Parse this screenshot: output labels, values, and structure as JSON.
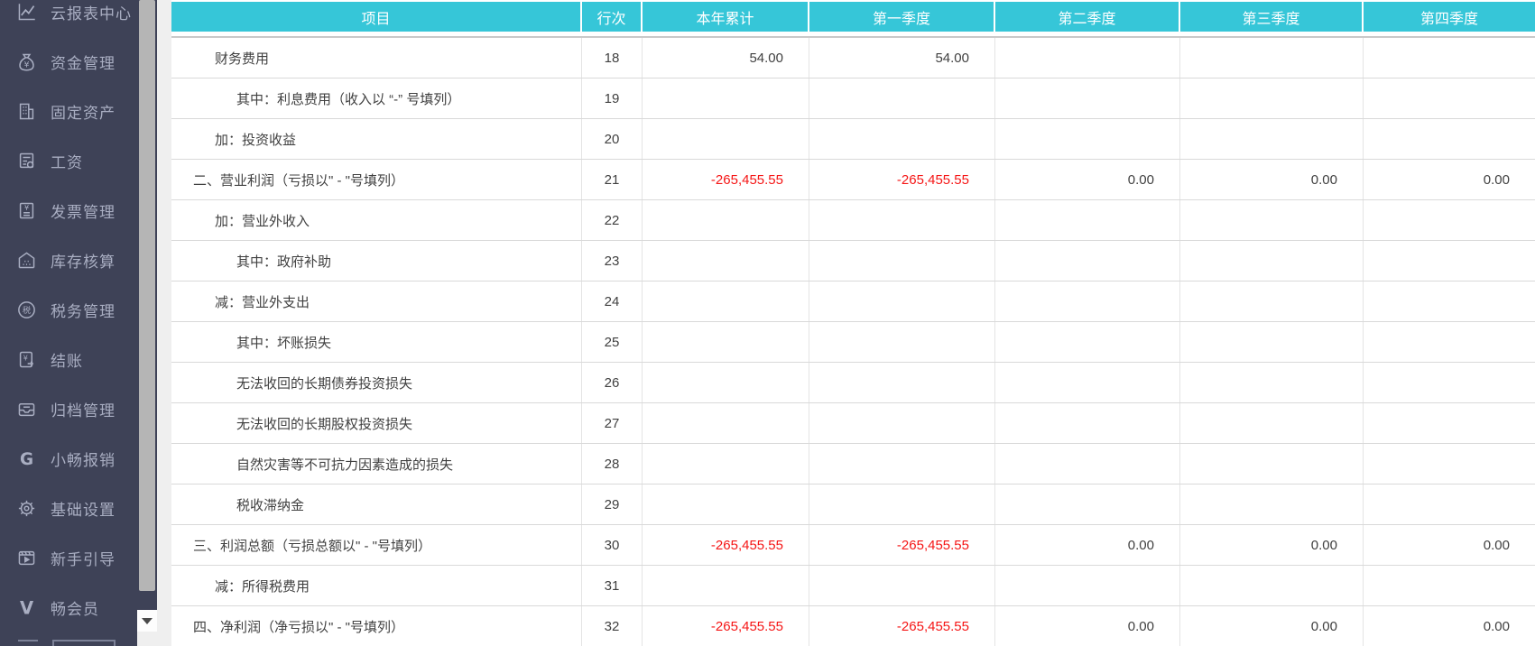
{
  "colors": {
    "sidebar_bg": "#3e4257",
    "sidebar_fg": "#a9aec2",
    "scrollbar_thumb": "#b5b5b5",
    "header_bg": "#36c6d8",
    "negative_value": "#f51616"
  },
  "sidebar": {
    "items": [
      {
        "label": "云报表中心",
        "icon": "chart-line-icon"
      },
      {
        "label": "资金管理",
        "icon": "money-bag-icon"
      },
      {
        "label": "固定资产",
        "icon": "building-icon"
      },
      {
        "label": "工资",
        "icon": "calculator-icon"
      },
      {
        "label": "发票管理",
        "icon": "invoice-icon"
      },
      {
        "label": "库存核算",
        "icon": "warehouse-icon"
      },
      {
        "label": "税务管理",
        "icon": "tax-icon"
      },
      {
        "label": "结账",
        "icon": "ledger-icon"
      },
      {
        "label": "归档管理",
        "icon": "archive-icon"
      },
      {
        "label": "小畅报销",
        "icon": "g-logo-icon"
      },
      {
        "label": "基础设置",
        "icon": "gear-icon"
      },
      {
        "label": "新手引导",
        "icon": "video-guide-icon"
      },
      {
        "label": "畅会员",
        "icon": "vip-icon"
      }
    ]
  },
  "table": {
    "columns": [
      "项目",
      "行次",
      "本年累计",
      "第一季度",
      "第二季度",
      "第三季度",
      "第四季度"
    ],
    "rows": [
      {
        "item": "财务费用",
        "indent": 1,
        "line": "18",
        "values": [
          "54.00",
          "54.00",
          "",
          "",
          ""
        ]
      },
      {
        "item": "其中：利息费用（收入以 “-” 号填列）",
        "indent": 2,
        "line": "19",
        "values": [
          "",
          "",
          "",
          "",
          ""
        ]
      },
      {
        "item": "加：投资收益",
        "indent": 1,
        "line": "20",
        "values": [
          "",
          "",
          "",
          "",
          ""
        ]
      },
      {
        "item": "二、营业利润（亏损以\" - \"号填列）",
        "indent": 0,
        "line": "21",
        "values": [
          "-265,455.55",
          "-265,455.55",
          "0.00",
          "0.00",
          "0.00"
        ]
      },
      {
        "item": "加：营业外收入",
        "indent": 1,
        "line": "22",
        "values": [
          "",
          "",
          "",
          "",
          ""
        ]
      },
      {
        "item": "其中：政府补助",
        "indent": 2,
        "line": "23",
        "values": [
          "",
          "",
          "",
          "",
          ""
        ]
      },
      {
        "item": "减：营业外支出",
        "indent": 1,
        "line": "24",
        "values": [
          "",
          "",
          "",
          "",
          ""
        ]
      },
      {
        "item": "其中：坏账损失",
        "indent": 2,
        "line": "25",
        "values": [
          "",
          "",
          "",
          "",
          ""
        ]
      },
      {
        "item": "无法收回的长期债券投资损失",
        "indent": 2,
        "line": "26",
        "values": [
          "",
          "",
          "",
          "",
          ""
        ]
      },
      {
        "item": "无法收回的长期股权投资损失",
        "indent": 2,
        "line": "27",
        "values": [
          "",
          "",
          "",
          "",
          ""
        ]
      },
      {
        "item": "自然灾害等不可抗力因素造成的损失",
        "indent": 2,
        "line": "28",
        "values": [
          "",
          "",
          "",
          "",
          ""
        ]
      },
      {
        "item": "税收滞纳金",
        "indent": 2,
        "line": "29",
        "values": [
          "",
          "",
          "",
          "",
          ""
        ]
      },
      {
        "item": "三、利润总额（亏损总额以\" - \"号填列）",
        "indent": 0,
        "line": "30",
        "values": [
          "-265,455.55",
          "-265,455.55",
          "0.00",
          "0.00",
          "0.00"
        ]
      },
      {
        "item": "减：所得税费用",
        "indent": 1,
        "line": "31",
        "values": [
          "",
          "",
          "",
          "",
          ""
        ]
      },
      {
        "item": "四、净利润（净亏损以\" - \"号填列）",
        "indent": 0,
        "line": "32",
        "values": [
          "-265,455.55",
          "-265,455.55",
          "0.00",
          "0.00",
          "0.00"
        ]
      }
    ]
  }
}
